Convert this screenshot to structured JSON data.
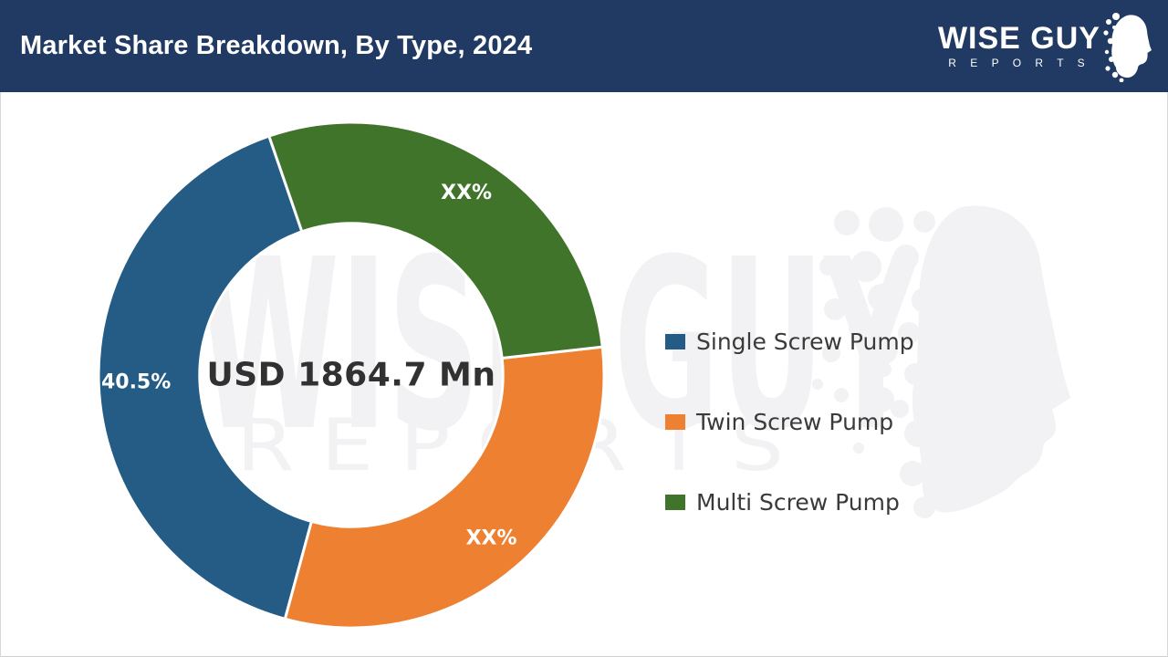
{
  "header": {
    "title": "Market Share Breakdown, By Type, 2024",
    "bg_color": "#213a63",
    "logo": {
      "line1": "WISE GUY",
      "line2": "R E P O R T S"
    }
  },
  "chart_data": {
    "type": "pie",
    "subtype": "donut",
    "title": "Market Share Breakdown, By Type, 2024",
    "center_label": "USD 1864.7 Mn",
    "start_angle_deg": 109,
    "direction": "counterclockwise",
    "inner_radius_ratio": 0.6,
    "slices": [
      {
        "name": "Single Screw Pump",
        "value_pct": 40.5,
        "label": "40.5%",
        "color": "#245c85"
      },
      {
        "name": "Twin Screw Pump",
        "value_pct": 31.0,
        "label": "XX%",
        "color": "#ee8031"
      },
      {
        "name": "Multi Screw Pump",
        "value_pct": 28.5,
        "label": "XX%",
        "color": "#40742a"
      }
    ],
    "legend_position": "right",
    "separator_color": "#ffffff"
  },
  "watermark": {
    "line1": "WISE GUY",
    "line2": "R E P O R T S",
    "color": "#f2f2f4"
  }
}
